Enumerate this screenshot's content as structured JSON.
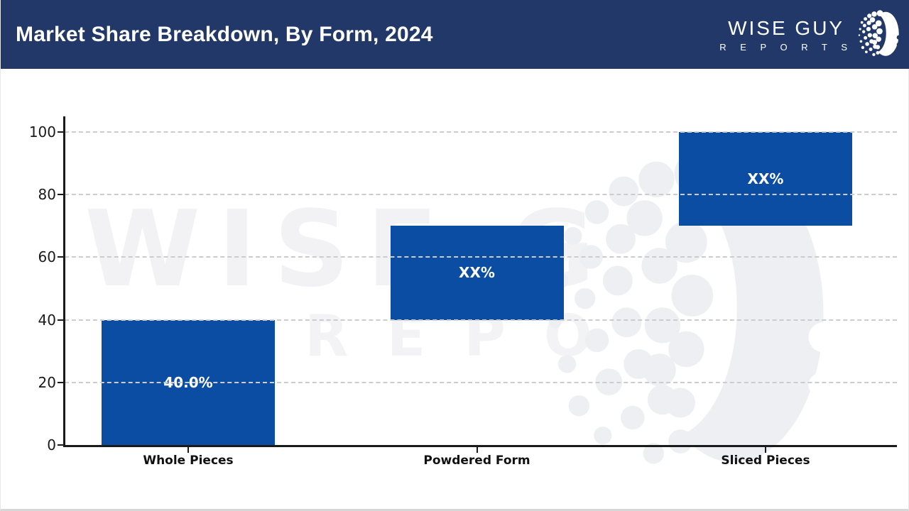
{
  "header": {
    "title": "Market Share Breakdown, By Form, 2024",
    "logo": {
      "line1": "WISE GUY",
      "line2": "R E P O R T S"
    }
  },
  "watermark": {
    "line1": "WISE GUY",
    "line2": "REPORTS"
  },
  "colors": {
    "header_bg": "#213869",
    "bar": "#0b4da2",
    "bar_label": "#ffffff",
    "grid": "#cccccc",
    "axis": "#1a1a1a"
  },
  "chart_data": {
    "type": "bar",
    "subtype": "floating-waterfall",
    "title": "Market Share Breakdown, By Form, 2024",
    "categories": [
      "Whole Pieces",
      "Powdered Form",
      "Sliced Pieces"
    ],
    "bars": [
      {
        "category": "Whole Pieces",
        "start": 0,
        "end": 40,
        "label": "40.0%"
      },
      {
        "category": "Powdered Form",
        "start": 40,
        "end": 70,
        "label": "XX%"
      },
      {
        "category": "Sliced Pieces",
        "start": 70,
        "end": 100,
        "label": "XX%"
      }
    ],
    "xlabel": "",
    "ylabel": "",
    "ylim": [
      0,
      100
    ],
    "yticks": [
      0,
      20,
      40,
      60,
      80,
      100
    ],
    "grid": "horizontal-dashed",
    "grid_above_bars": true,
    "legend": "none"
  }
}
